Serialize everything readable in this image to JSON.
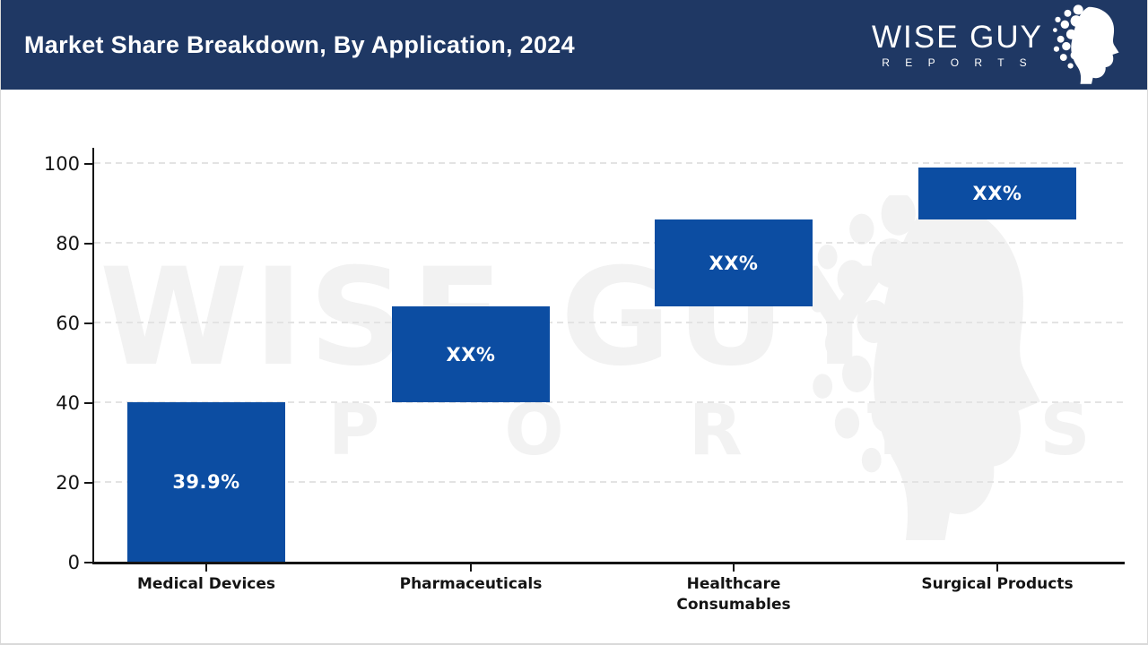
{
  "header": {
    "title": "Market Share Breakdown, By Application, 2024",
    "bg_color": "#1F3864",
    "logo": {
      "line1": "WISE GUY",
      "line2": "R E P O R T S",
      "head_icon": "dotted-head-profile"
    }
  },
  "watermark": {
    "line1": "WISE GUY",
    "line2": "P O R T S",
    "head_icon": "dotted-head-profile"
  },
  "chart_data": {
    "type": "bar",
    "subtype": "waterfall-breakdown",
    "title": "Market Share Breakdown, By Application, 2024",
    "categories": [
      "Medical Devices",
      "Pharmaceuticals",
      "Healthcare\nConsumables",
      "Surgical Products"
    ],
    "segments": [
      {
        "category": "Medical Devices",
        "start": 0,
        "end": 39.9,
        "label": "39.9%"
      },
      {
        "category": "Pharmaceuticals",
        "start": 39.9,
        "end": 64.0,
        "label": "XX%"
      },
      {
        "category": "Healthcare Consumables",
        "start": 64.0,
        "end": 85.8,
        "label": "XX%"
      },
      {
        "category": "Surgical Products",
        "start": 85.8,
        "end": 98.9,
        "label": "XX%"
      }
    ],
    "yticks": [
      0,
      20,
      40,
      60,
      80,
      100
    ],
    "ylim": [
      0,
      100
    ],
    "xlabel": "",
    "ylabel": "",
    "legend": "none",
    "grid": "horizontal-dashed",
    "grid_color": "#e3e3e3",
    "bar_color": "#0C4DA2",
    "bar_label_color": "#FFFFFF",
    "axis_color": "#141414"
  }
}
